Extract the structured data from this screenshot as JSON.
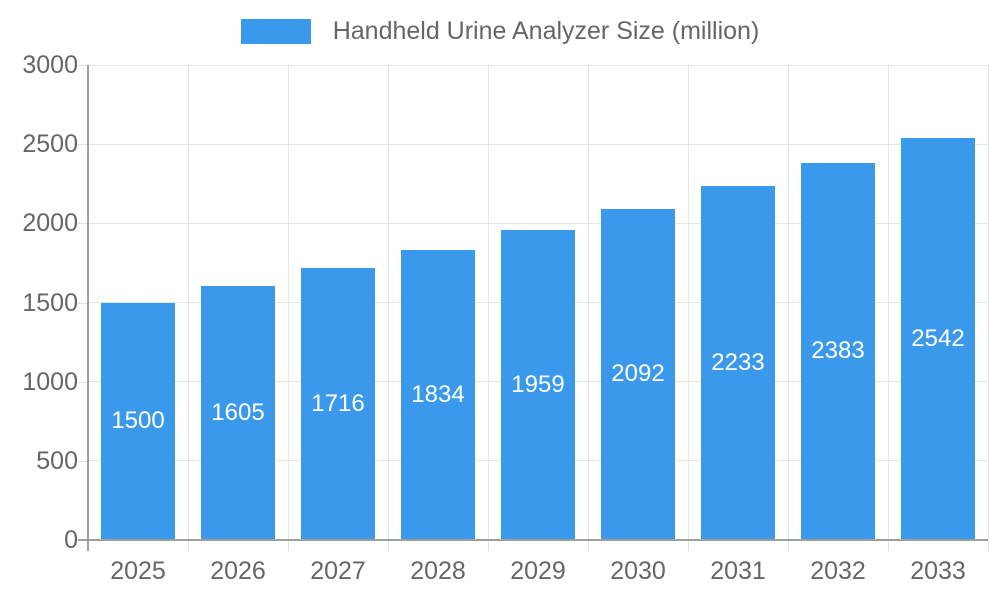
{
  "window": {
    "background": "#ffffff"
  },
  "legend": {
    "label": "Handheld Urine Analyzer Size (million)"
  },
  "chart_data": {
    "type": "bar",
    "title": "Handheld Urine Analyzer Size (million)",
    "categories": [
      "2025",
      "2026",
      "2027",
      "2028",
      "2029",
      "2030",
      "2031",
      "2032",
      "2033"
    ],
    "values": [
      1500,
      1605,
      1716,
      1834,
      1959,
      2092,
      2233,
      2383,
      2542
    ],
    "bar_value_labels": [
      "1500",
      "1605",
      "1716",
      "1834",
      "1959",
      "2092",
      "2233",
      "2383",
      "2542"
    ],
    "xlabel": "",
    "ylabel": "",
    "ylim": [
      0,
      3000
    ],
    "ytick_step": 500,
    "yticks": [
      0,
      500,
      1000,
      1500,
      2000,
      2500,
      3000
    ],
    "grid": true,
    "legend_position": "top",
    "colors": {
      "bar": "#3B99EC",
      "bar_value_label": "#FFFFFF",
      "gridline": "#E6E6E6",
      "axis_line": "#9E9E9E",
      "tick_mark": "#E0E0E0",
      "tick_label": "#666666",
      "legend_text": "#666666",
      "background": "#FFFFFF"
    }
  }
}
